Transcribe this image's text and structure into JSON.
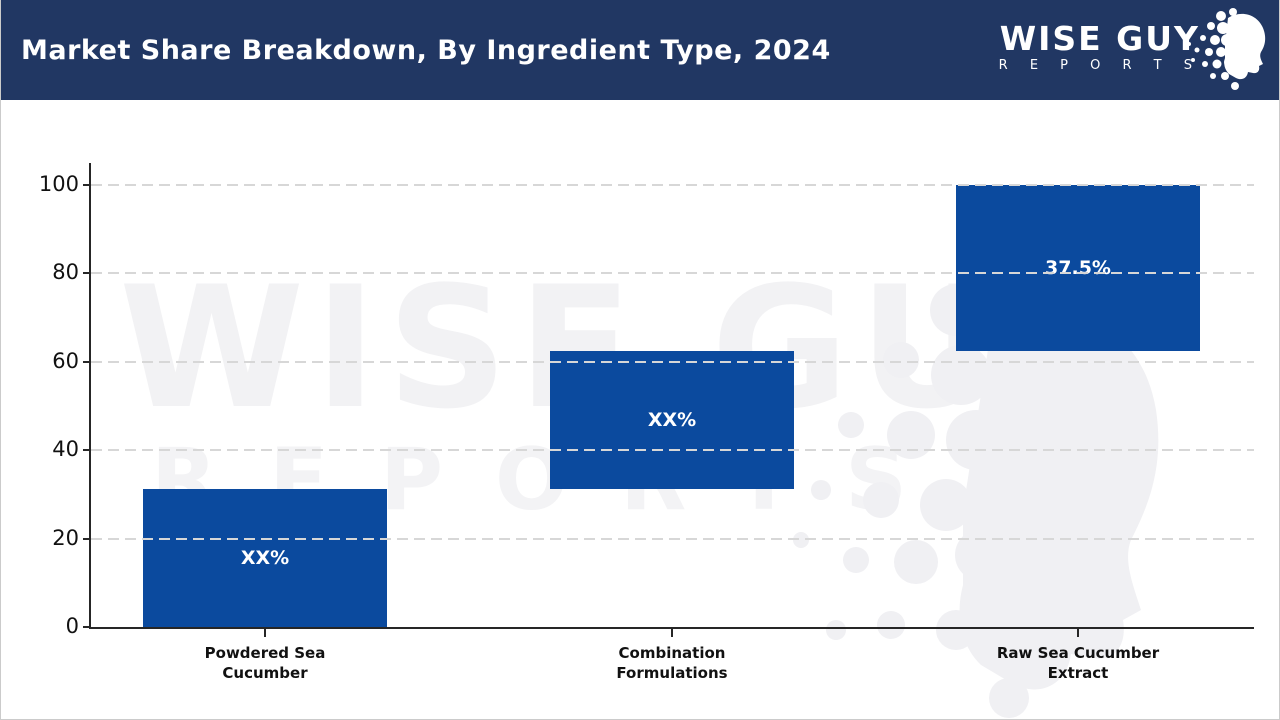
{
  "header": {
    "title": "Market Share Breakdown, By Ingredient Type, 2024",
    "logo": {
      "line1": "WISE GUY",
      "line2": "R E P O R T S"
    }
  },
  "watermark": {
    "line1": "WISE GUY",
    "line2": "REPORTS"
  },
  "colors": {
    "header_bg": "#213763",
    "bar": "#0b4a9e",
    "bar_label": "#ffffff",
    "axis": "#262626",
    "tick_text": "#111111",
    "gridline": "#d7d7d7",
    "watermark": "#f2f2f4"
  },
  "chart_data": {
    "type": "bar",
    "subtype": "floating-segment-breakdown",
    "title": "Market Share Breakdown, By Ingredient Type, 2024",
    "xlabel": "",
    "ylabel": "",
    "categories": [
      "Powdered Sea Cucumber",
      "Combination Formulations",
      "Raw Sea Cucumber Extract"
    ],
    "category_lines": [
      [
        "Powdered Sea",
        "Cucumber"
      ],
      [
        "Combination",
        "Formulations"
      ],
      [
        "Raw Sea Cucumber",
        "Extract"
      ]
    ],
    "segments": [
      {
        "category": "Powdered Sea Cucumber",
        "start": 0,
        "end": 31.25,
        "value": 31.25,
        "label": "XX%"
      },
      {
        "category": "Combination Formulations",
        "start": 31.25,
        "end": 62.5,
        "value": 31.25,
        "label": "XX%"
      },
      {
        "category": "Raw Sea Cucumber Extract",
        "start": 62.5,
        "end": 100,
        "value": 37.5,
        "label": "37.5%"
      }
    ],
    "yticks": [
      0,
      20,
      40,
      60,
      80,
      100
    ],
    "ylim": [
      0,
      105
    ],
    "grid": "dashed-horizontal",
    "legend": "none"
  }
}
